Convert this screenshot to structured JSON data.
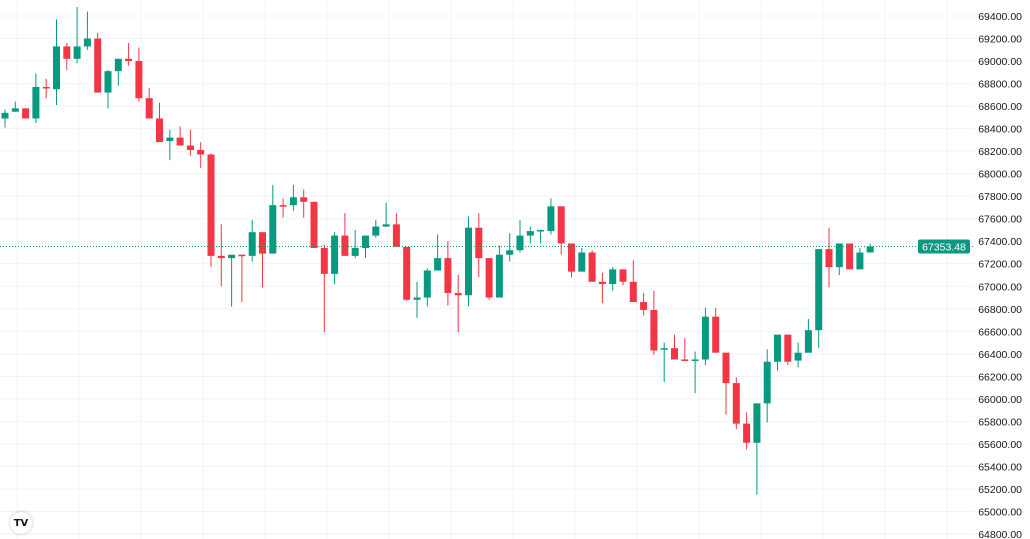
{
  "chart_data": {
    "type": "candlestick",
    "title": "",
    "xlabel": "",
    "ylabel": "",
    "ylim": [
      64800,
      69400
    ],
    "y_ticks": [
      "69400.00",
      "69200.00",
      "69000.00",
      "68800.00",
      "68600.00",
      "68400.00",
      "68200.00",
      "68000.00",
      "67800.00",
      "67600.00",
      "67400.00",
      "67200.00",
      "67000.00",
      "66800.00",
      "66600.00",
      "66400.00",
      "66200.00",
      "66000.00",
      "65800.00",
      "65600.00",
      "65400.00",
      "65200.00",
      "65000.00",
      "64800.00"
    ],
    "grid": true,
    "last_price": 67353.48,
    "last_price_label": "67353.48",
    "colors": {
      "up": "#089981",
      "down": "#f23645",
      "grid": "#f0f3fa"
    },
    "ohlc": [
      [
        68490,
        68570,
        68410,
        68540
      ],
      [
        68550,
        68640,
        68550,
        68580
      ],
      [
        68580,
        68580,
        68490,
        68490
      ],
      [
        68490,
        68890,
        68450,
        68770
      ],
      [
        68770,
        68840,
        68670,
        68760
      ],
      [
        68750,
        69370,
        68610,
        69130
      ],
      [
        69130,
        69160,
        68920,
        69020
      ],
      [
        69020,
        69480,
        68980,
        69130
      ],
      [
        69130,
        69440,
        69100,
        69200
      ],
      [
        69200,
        69250,
        68720,
        68720
      ],
      [
        68720,
        68920,
        68580,
        68910
      ],
      [
        68910,
        69020,
        68780,
        69020
      ],
      [
        69020,
        69160,
        68960,
        69000
      ],
      [
        69000,
        69120,
        68640,
        68670
      ],
      [
        68670,
        68760,
        68490,
        68490
      ],
      [
        68490,
        68630,
        68280,
        68280
      ],
      [
        68290,
        68390,
        68120,
        68320
      ],
      [
        68320,
        68420,
        68250,
        68250
      ],
      [
        68250,
        68390,
        68160,
        68210
      ],
      [
        68210,
        68280,
        68050,
        68170
      ],
      [
        68170,
        68180,
        67170,
        67270
      ],
      [
        67270,
        67550,
        67000,
        67250
      ],
      [
        67250,
        67280,
        66820,
        67280
      ],
      [
        67280,
        67280,
        66860,
        67270
      ],
      [
        67270,
        67590,
        67220,
        67480
      ],
      [
        67480,
        67480,
        66990,
        67290
      ],
      [
        67290,
        67900,
        67290,
        67720
      ],
      [
        67720,
        67780,
        67610,
        67710
      ],
      [
        67720,
        67900,
        67670,
        67790
      ],
      [
        67790,
        67860,
        67610,
        67750
      ],
      [
        67750,
        67750,
        67340,
        67340
      ],
      [
        67340,
        67370,
        66590,
        67110
      ],
      [
        67110,
        67480,
        67020,
        67450
      ],
      [
        67450,
        67650,
        67270,
        67270
      ],
      [
        67270,
        67500,
        67250,
        67340
      ],
      [
        67340,
        67450,
        67250,
        67450
      ],
      [
        67450,
        67590,
        67430,
        67530
      ],
      [
        67530,
        67740,
        67530,
        67550
      ],
      [
        67550,
        67650,
        67350,
        67350
      ],
      [
        67350,
        67350,
        66870,
        66880
      ],
      [
        66880,
        67040,
        66720,
        66900
      ],
      [
        66900,
        67160,
        66820,
        67140
      ],
      [
        67140,
        67460,
        67140,
        67250
      ],
      [
        67250,
        67400,
        66830,
        66940
      ],
      [
        66940,
        67100,
        66590,
        66920
      ],
      [
        66920,
        67620,
        66820,
        67520
      ],
      [
        67520,
        67650,
        67080,
        67250
      ],
      [
        67250,
        67250,
        66880,
        66900
      ],
      [
        66900,
        67360,
        66900,
        67280
      ],
      [
        67280,
        67470,
        67220,
        67320
      ],
      [
        67320,
        67590,
        67300,
        67450
      ],
      [
        67450,
        67530,
        67380,
        67490
      ],
      [
        67490,
        67500,
        67380,
        67500
      ],
      [
        67490,
        67780,
        67460,
        67710
      ],
      [
        67710,
        67710,
        67280,
        67380
      ],
      [
        67380,
        67380,
        67080,
        67130
      ],
      [
        67130,
        67340,
        67130,
        67300
      ],
      [
        67300,
        67320,
        67040,
        67040
      ],
      [
        67040,
        67120,
        66850,
        67020
      ],
      [
        67020,
        67170,
        66960,
        67150
      ],
      [
        67150,
        67150,
        67010,
        67040
      ],
      [
        67040,
        67230,
        66860,
        66860
      ],
      [
        66860,
        66940,
        66740,
        66790
      ],
      [
        66790,
        66960,
        66390,
        66430
      ],
      [
        66440,
        66500,
        66150,
        66450
      ],
      [
        66450,
        66570,
        66350,
        66350
      ],
      [
        66350,
        66540,
        66340,
        66340
      ],
      [
        66340,
        66420,
        66050,
        66350
      ],
      [
        66350,
        66810,
        66300,
        66730
      ],
      [
        66730,
        66810,
        66410,
        66410
      ],
      [
        66410,
        66410,
        65860,
        66140
      ],
      [
        66140,
        66190,
        65730,
        65780
      ],
      [
        65780,
        65880,
        65550,
        65610
      ],
      [
        65610,
        65960,
        65150,
        65960
      ],
      [
        65960,
        66440,
        65790,
        66330
      ],
      [
        66330,
        66570,
        66250,
        66570
      ],
      [
        66570,
        66570,
        66300,
        66330
      ],
      [
        66340,
        66500,
        66280,
        66410
      ],
      [
        66410,
        66710,
        66410,
        66610
      ],
      [
        66610,
        67330,
        66450,
        67330
      ],
      [
        67330,
        67520,
        66990,
        67170
      ],
      [
        67170,
        67380,
        67100,
        67380
      ],
      [
        67380,
        67380,
        67150,
        67150
      ],
      [
        67150,
        67340,
        67150,
        67300
      ],
      [
        67300,
        67380,
        67300,
        67353.48
      ]
    ]
  },
  "logo": {
    "icon": "tradingview-logo",
    "text": "TV"
  }
}
